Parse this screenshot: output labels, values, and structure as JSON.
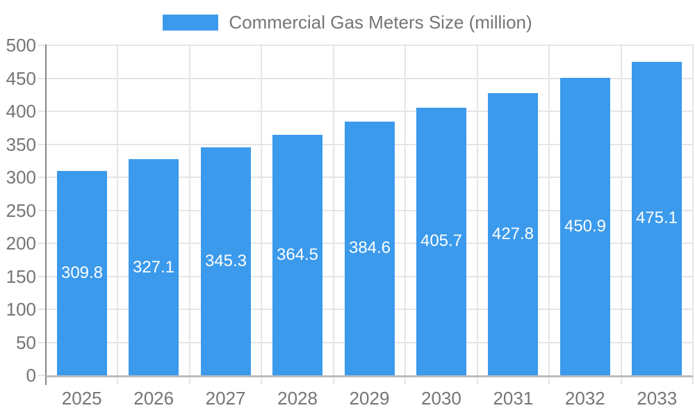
{
  "chart_data": {
    "type": "bar",
    "series_name": "Commercial Gas Meters Size (million)",
    "categories": [
      "2025",
      "2026",
      "2027",
      "2028",
      "2029",
      "2030",
      "2031",
      "2032",
      "2033"
    ],
    "values": [
      309.8,
      327.1,
      345.3,
      364.5,
      384.6,
      405.7,
      427.8,
      450.9,
      475.1
    ],
    "value_labels": [
      "309.8",
      "327.1",
      "345.3",
      "364.5",
      "384.6",
      "405.7",
      "427.8",
      "450.9",
      "475.1"
    ],
    "xlabel": "",
    "ylabel": "",
    "ylim": [
      0,
      500
    ],
    "yticks": [
      0,
      50,
      100,
      150,
      200,
      250,
      300,
      350,
      400,
      450,
      500
    ],
    "grid": true,
    "legend_position": "top",
    "value_label_position": "center-of-bar",
    "colors": {
      "bar": "#3b9aec",
      "bar_value_text": "#ffffff",
      "axis_text": "#757575",
      "grid_line": "#e5e5e5",
      "y_axis_line": "#878787",
      "x_axis_line": "#bdbdbd",
      "background": "#ffffff"
    }
  }
}
